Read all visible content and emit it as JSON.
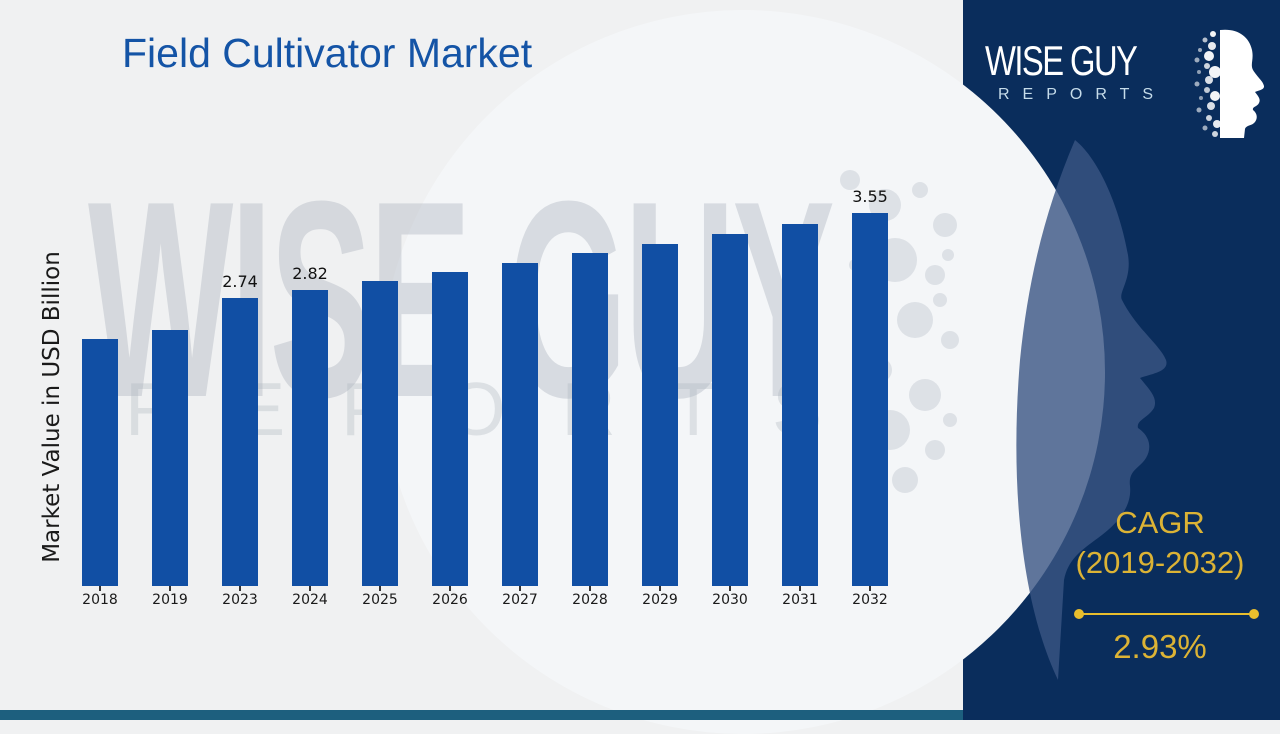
{
  "title": "Field Cultivator Market",
  "colors": {
    "background": "#f0f1f2",
    "bar_blue": "#114fa4",
    "title_blue": "#1454a6",
    "navy_panel": "#0a2d5c",
    "teal_strip": "#1d5f7e",
    "gold": "#dcb335"
  },
  "chart_data": {
    "type": "bar",
    "title": "Field Cultivator Market",
    "ylabel": "Market Value in USD Billion",
    "xlabel": "",
    "categories": [
      "2018",
      "2019",
      "2023",
      "2024",
      "2025",
      "2026",
      "2027",
      "2028",
      "2029",
      "2030",
      "2031",
      "2032"
    ],
    "values": [
      2.35,
      2.44,
      2.74,
      2.82,
      2.9,
      2.99,
      3.08,
      3.17,
      3.26,
      3.35,
      3.45,
      3.55
    ],
    "bar_labels": [
      "",
      "",
      "2.74",
      "2.82",
      "",
      "",
      "",
      "",
      "",
      "",
      "",
      "3.55"
    ],
    "ylim": [
      0,
      4
    ],
    "grid": false,
    "legend_position": "none"
  },
  "watermark": {
    "line1": "WISE GUY",
    "line2": "REPORTS"
  },
  "logo": {
    "name": "WISE GUY",
    "subtitle": "REPORTS"
  },
  "cagr": {
    "heading": "CAGR",
    "range": "(2019-2032)",
    "value": "2.93%"
  }
}
